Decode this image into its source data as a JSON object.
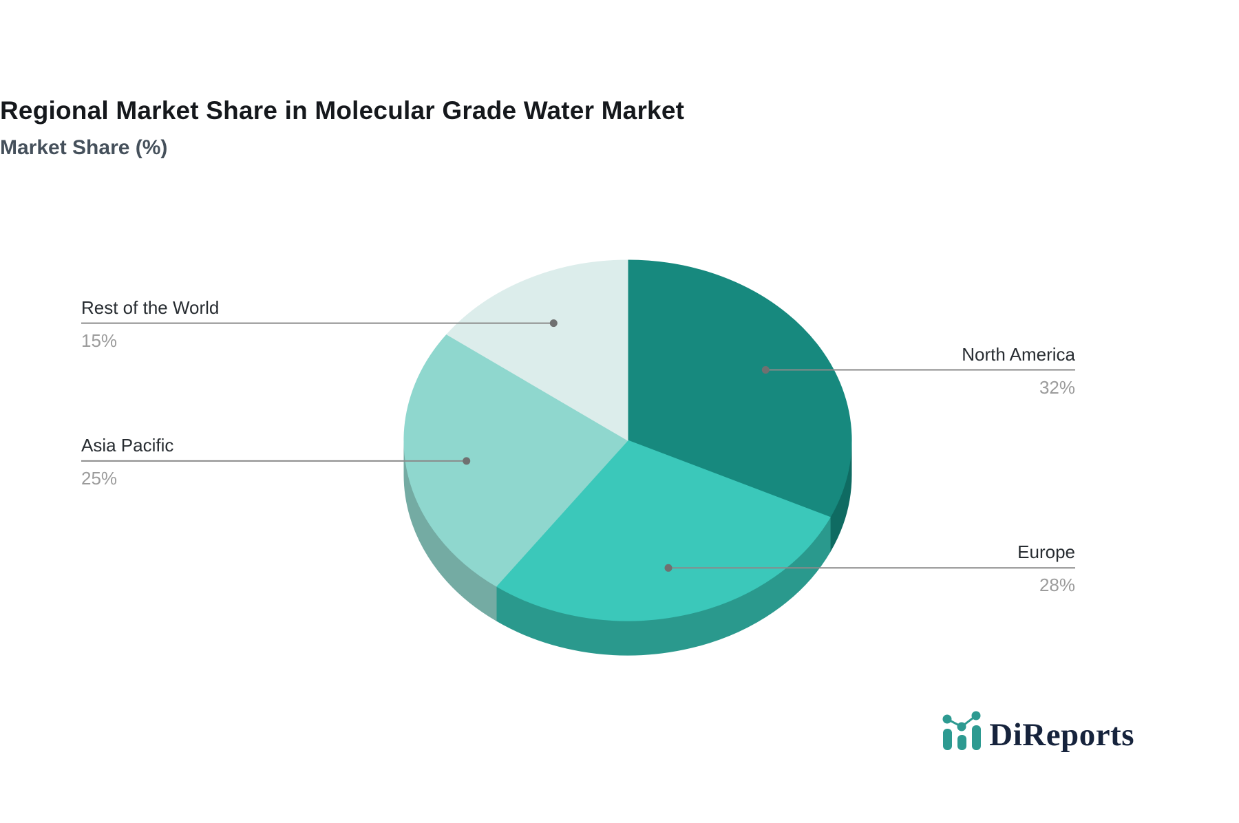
{
  "chart_data": {
    "type": "pie",
    "style_3d": true,
    "title": "Regional Market Share in Molecular Grade Water Market",
    "subtitle": "Market Share (%)",
    "unit": "%",
    "start_angle_deg": 0,
    "direction": "clockwise",
    "legend": "none",
    "slices": [
      {
        "label": "North America",
        "value": 32,
        "display": "32%",
        "color": "#17897e",
        "side_color": "#0f6b62",
        "label_side": "right"
      },
      {
        "label": "Europe",
        "value": 28,
        "display": "28%",
        "color": "#3bc8ba",
        "side_color": "#2a998d",
        "label_side": "right"
      },
      {
        "label": "Asia Pacific",
        "value": 25,
        "display": "25%",
        "color": "#8fd7ce",
        "side_color": "#74aba3",
        "label_side": "left"
      },
      {
        "label": "Rest of the World",
        "value": 15,
        "display": "15%",
        "color": "#dcedeb",
        "side_color": "#b7ccc9",
        "label_side": "left"
      }
    ],
    "callout_style": {
      "line_color": "#8a8a8a",
      "dot_color": "#707070",
      "label_color": "#272c31",
      "value_color": "#9b9b9b"
    }
  },
  "branding": {
    "logo_text": "DiReports",
    "logo_icon": "bar-line-chart-icon",
    "icon_color": "#2d9a91",
    "text_color": "#16233c"
  }
}
